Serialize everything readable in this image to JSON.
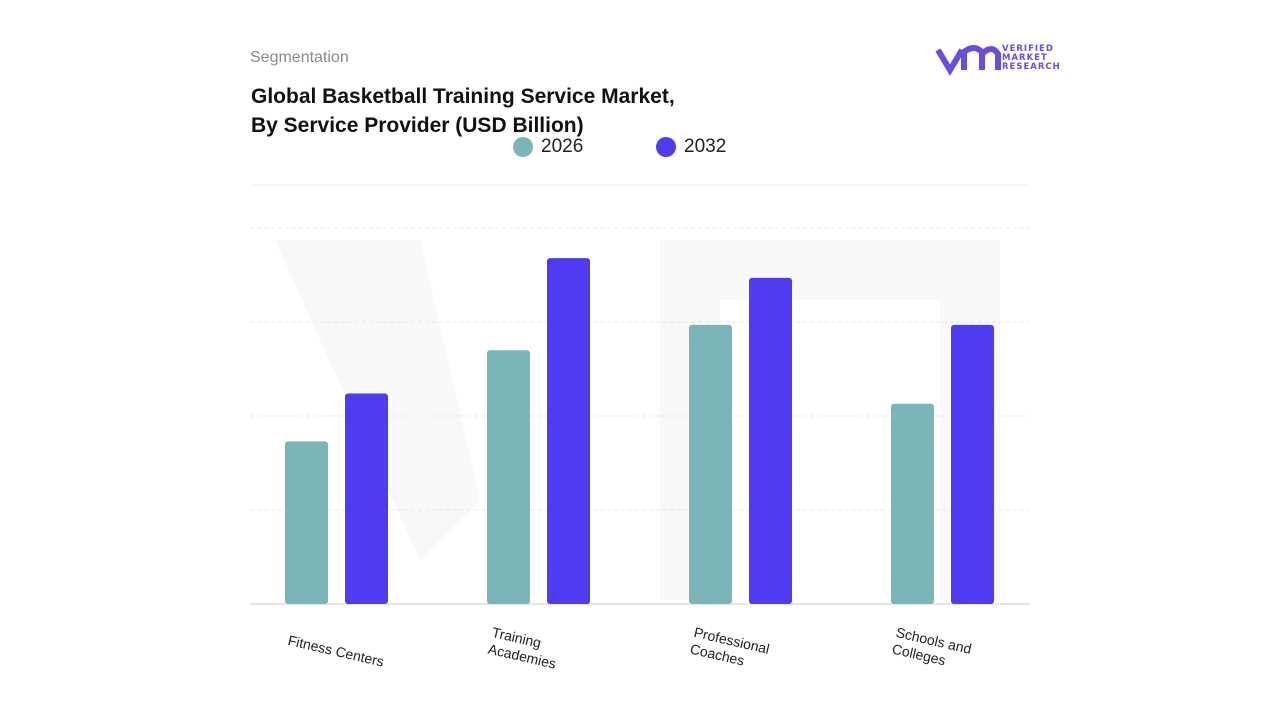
{
  "chart_data": {
    "type": "bar",
    "subtitle": "Segmentation",
    "title": "Global Basketball Training Service Market, By Service Provider (USD Billion)",
    "brand": [
      "VERIFIED",
      "MARKET",
      "RESEARCH"
    ],
    "categories": [
      "Fitness Centers",
      "Training Academies",
      "Professional Coaches",
      "Schools and Colleges"
    ],
    "series": [
      {
        "name": "2026",
        "color": "#7ab5b8",
        "values": [
          1.73,
          2.7,
          2.97,
          2.13
        ]
      },
      {
        "name": "2032",
        "color": "#4f3cf2",
        "values": [
          2.24,
          3.68,
          3.47,
          2.97
        ]
      }
    ],
    "ylim": [
      0,
      4.5
    ],
    "yticks": [
      1,
      2,
      3,
      4
    ],
    "grid": true
  }
}
